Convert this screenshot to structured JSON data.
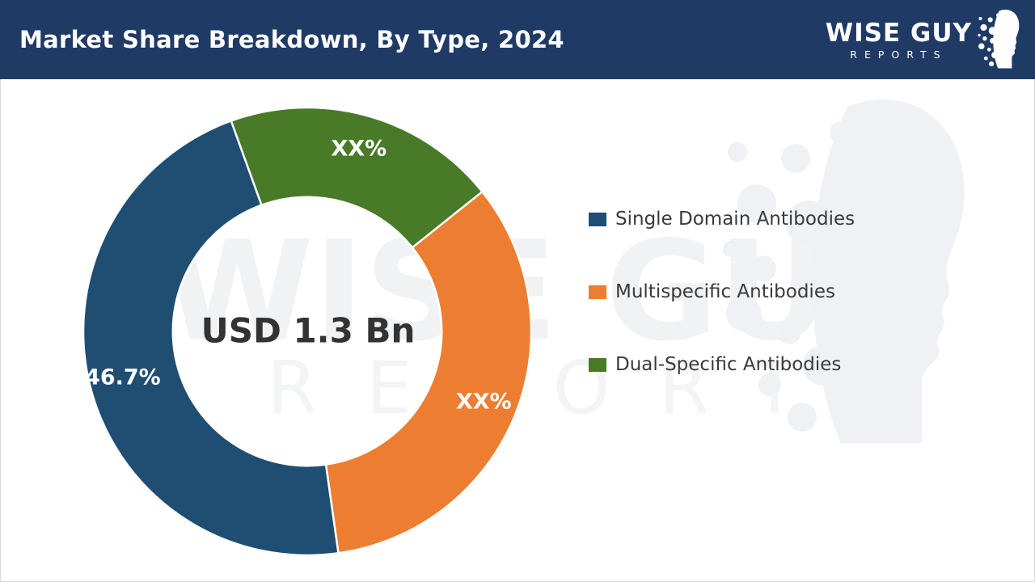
{
  "header": {
    "title": "Market Share Breakdown, By Type, 2024",
    "logo": {
      "name": "WISE GUY",
      "sub": "REPORTS"
    }
  },
  "watermark": {
    "line1": "WISE GUY",
    "line2": "REPORTS"
  },
  "chart_data": {
    "type": "pie",
    "subtype": "donut",
    "title": "Market Share Breakdown, By Type, 2024",
    "center_label": "USD 1.3 Bn",
    "legend_position": "right",
    "start_angle_deg_clockwise_from_top": 172,
    "clockwise_draw_order": [
      0,
      2,
      1
    ],
    "inner_radius_ratio": 0.6,
    "segments": [
      {
        "label": "Single Domain Antibodies",
        "value": 46.7,
        "display_label": "46.7%",
        "color": "#1F4E72"
      },
      {
        "label": "Multispecific Antibodies",
        "value": 33.5,
        "display_label": "XX%",
        "color": "#ED7D31"
      },
      {
        "label": "Dual-Specific Antibodies",
        "value": 19.8,
        "display_label": "XX%",
        "color": "#497A28"
      }
    ]
  }
}
